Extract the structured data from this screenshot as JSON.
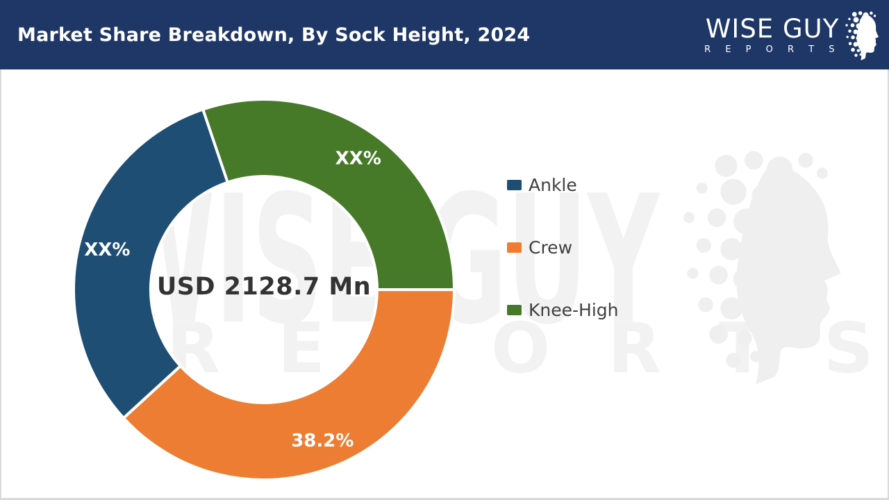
{
  "header": {
    "title": "Market Share Breakdown, By Sock Height, 2024",
    "logo": {
      "title": "WISE GUY",
      "subtitle": "R E P O R T S"
    }
  },
  "watermark": {
    "title": "WISE GUY",
    "subtitle": "R E P O R T S"
  },
  "chart_data": {
    "type": "pie",
    "subtype": "donut",
    "title": "Market Share Breakdown, By Sock Height, 2024",
    "center_label": "USD 2128.7 Mn",
    "legend_position": "right",
    "segments": [
      {
        "name": "Ankle",
        "label": "XX%",
        "value": 31.6,
        "color": "#1F4E74"
      },
      {
        "name": "Crew",
        "label": "38.2%",
        "value": 38.2,
        "color": "#EC7D33"
      },
      {
        "name": "Knee-High",
        "label": "XX%",
        "value": 30.2,
        "color": "#477A28"
      }
    ]
  }
}
